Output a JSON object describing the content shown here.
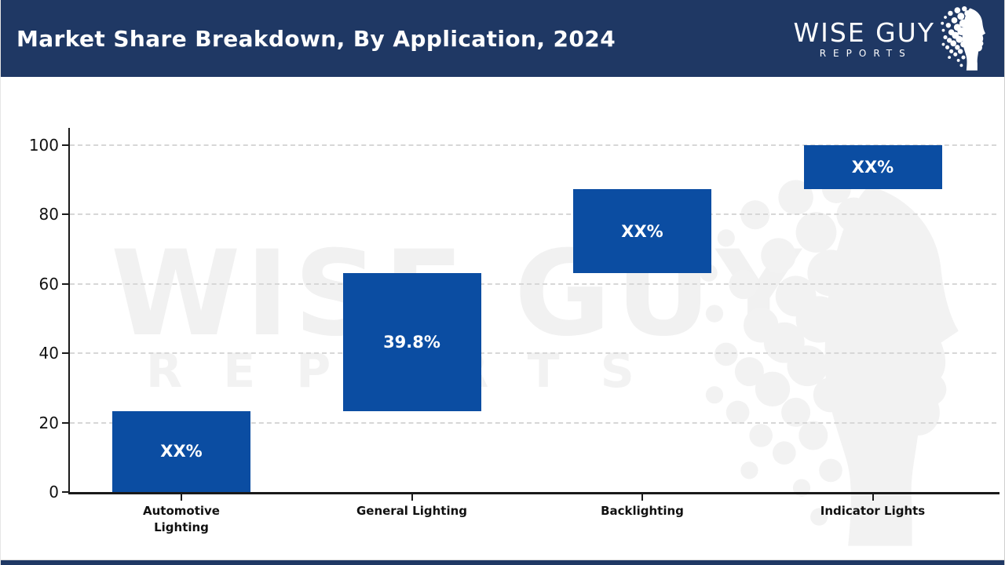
{
  "header": {
    "title": "Market Share Breakdown, By Application, 2024",
    "logo": {
      "line1": "WISE GUY",
      "line2": "REPORTS",
      "icon": "wiseguy-head-icon"
    }
  },
  "watermark": {
    "line1": "WISE GUY",
    "line2": "REPORTS",
    "icon": "wiseguy-head-icon"
  },
  "colors": {
    "header_bg": "#1f3864",
    "footer_bg": "#1f3864",
    "bar": "#0b4da2",
    "grid": "#d7d7d7",
    "axis": "#1a1a1a",
    "bar_label_text": "#ffffff",
    "watermark": "#f1f1f1"
  },
  "chart_data": {
    "type": "bar",
    "subtype": "waterfall",
    "title": "Market Share Breakdown, By Application, 2024",
    "categories": [
      "Automotive\nLighting",
      "General Lighting",
      "Backlighting",
      "Indicator Lights"
    ],
    "values": [
      23.3,
      39.8,
      24.1,
      12.8
    ],
    "cumulative_start": [
      0,
      23.3,
      63.1,
      87.2
    ],
    "cumulative_end": [
      23.3,
      63.1,
      87.2,
      100
    ],
    "bar_labels": [
      "XX%",
      "39.8%",
      "XX%",
      "XX%"
    ],
    "xlabel": "",
    "ylabel": "",
    "ylim": [
      0,
      105
    ],
    "yticks": [
      0,
      20,
      40,
      60,
      80,
      100
    ],
    "grid": "horizontal-dashed",
    "legend": "none"
  }
}
